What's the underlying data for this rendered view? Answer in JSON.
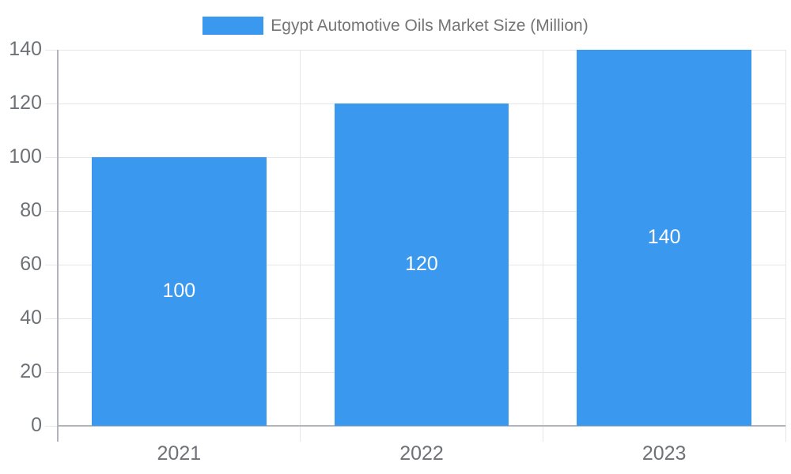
{
  "chart_data": {
    "type": "bar",
    "series_name": "Egypt Automotive Oils Market Size (Million)",
    "categories": [
      "2021",
      "2022",
      "2023"
    ],
    "values": [
      100,
      120,
      140
    ],
    "data_labels": [
      "100",
      "120",
      "140"
    ],
    "xlabel": "",
    "ylabel": "",
    "ylim": [
      0,
      140
    ],
    "yticks": [
      0,
      20,
      40,
      60,
      80,
      100,
      120,
      140
    ],
    "ytick_labels": [
      "0",
      "20",
      "40",
      "60",
      "80",
      "100",
      "120",
      "140"
    ],
    "grid": true,
    "legend_position": "top-center",
    "legend_icon": "rect-swatch",
    "colors": {
      "bar": "#3A99EE",
      "bar_label": "#FFFFFF",
      "legend_text": "#757575",
      "tick_text": "#6E7277",
      "axis_line": "#B1B4BA",
      "gridline": "#E4E6EA",
      "background": "#FFFFFF"
    }
  }
}
